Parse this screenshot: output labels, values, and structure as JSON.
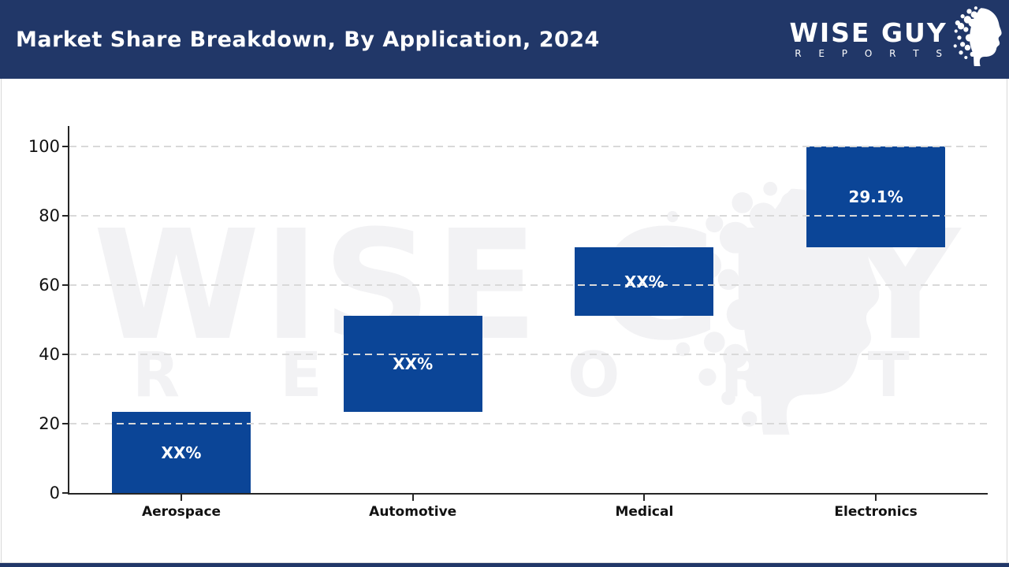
{
  "header": {
    "title": "Market Share Breakdown, By Application, 2024",
    "logo": {
      "line1": "WISE GUY",
      "line2": "R E P O R T S"
    }
  },
  "watermark": {
    "line1": "WISE GUY",
    "line2": "R E P O R T S"
  },
  "chart_data": {
    "type": "bar",
    "subtype": "floating-waterfall",
    "title": "Market Share Breakdown, By Application, 2024",
    "categories": [
      "Aerospace",
      "Automotive",
      "Medical",
      "Electronics"
    ],
    "bars": [
      {
        "category": "Aerospace",
        "start": 0,
        "end": 23.4,
        "label": "XX%"
      },
      {
        "category": "Automotive",
        "start": 23.4,
        "end": 51.1,
        "label": "XX%"
      },
      {
        "category": "Medical",
        "start": 51.1,
        "end": 70.9,
        "label": "XX%"
      },
      {
        "category": "Electronics",
        "start": 70.9,
        "end": 100,
        "label": "29.1%"
      }
    ],
    "xlabel": "",
    "ylabel": "",
    "yticks": [
      0,
      20,
      40,
      60,
      80,
      100
    ],
    "ylim": [
      0,
      106
    ],
    "grid": "dashed-horizontal-above-bars",
    "legend": "none"
  },
  "colors": {
    "header_bg": "#213768",
    "bar": "#0b4597",
    "bar_label": "#ffffff",
    "grid": "#d9d9d9",
    "axis": "#262626",
    "watermark": "#f2f2f4",
    "footer_strip": "#213768"
  }
}
